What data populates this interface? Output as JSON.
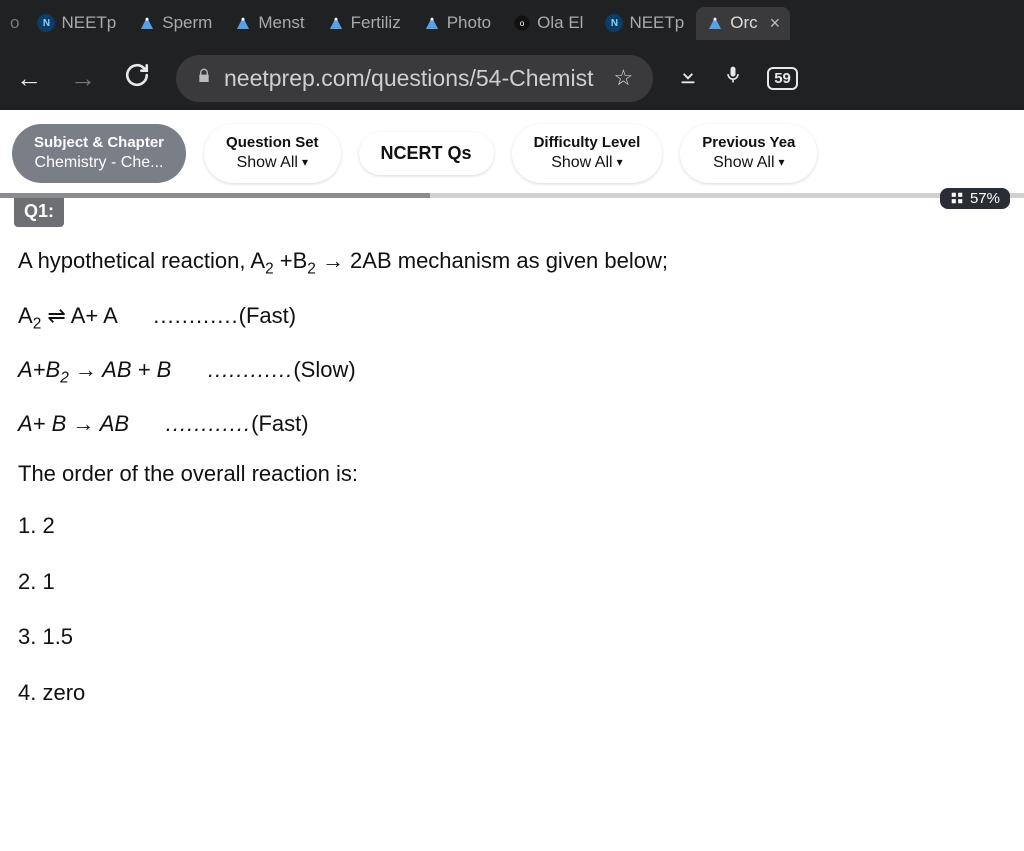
{
  "tabs": [
    {
      "label": "NEETp",
      "favicon": "circle",
      "glyph": "N"
    },
    {
      "label": "Sperm",
      "favicon": "tri"
    },
    {
      "label": "Menst",
      "favicon": "tri"
    },
    {
      "label": "Fertiliz",
      "favicon": "tri"
    },
    {
      "label": "Photo",
      "favicon": "tri"
    },
    {
      "label": "Ola El",
      "favicon": "ola"
    },
    {
      "label": "NEETp",
      "favicon": "circle",
      "glyph": "N"
    },
    {
      "label": "Orc",
      "favicon": "tri",
      "active": true
    }
  ],
  "url": "neetprep.com/questions/54-Chemist",
  "tab_count_badge": "59",
  "filters": [
    {
      "title": "Subject & Chapter",
      "value": "Chemistry - Che...",
      "active": true,
      "chevron": false
    },
    {
      "title": "Question Set",
      "value": "Show All",
      "active": false,
      "chevron": true
    },
    {
      "title": "NCERT Qs",
      "value": "",
      "active": false,
      "chevron": false,
      "single": true
    },
    {
      "title": "Difficulty Level",
      "value": "Show All",
      "active": false,
      "chevron": true
    },
    {
      "title": "Previous Yea",
      "value": "Show All",
      "active": false,
      "chevron": true
    }
  ],
  "progress_pct": 42,
  "question_badge": "Q1:",
  "percent_badge": "57%",
  "q_intro_pre": "A hypothetical reaction, A",
  "q_intro_mid1": " +B",
  "q_intro_mid2": " → 2AB mechanism as given below;",
  "mech": [
    {
      "lhs_pre": "A",
      "lhs_sub": "2",
      "arrow": "⇌",
      "rhs": "A+ A",
      "note": "(Fast)",
      "italic": false
    },
    {
      "lhs_pre": "A+B",
      "lhs_sub": "2",
      "arrow": "→",
      "rhs": "AB + B",
      "note": "(Slow)",
      "italic": true
    },
    {
      "lhs_pre": "A+ B",
      "lhs_sub": "",
      "arrow": "→",
      "rhs": "AB",
      "note": "(Fast)",
      "italic": true
    }
  ],
  "q_prompt": "The order of the overall reaction is:",
  "options": [
    "1. 2",
    "2. 1",
    "3. 1.5",
    "4. zero"
  ]
}
